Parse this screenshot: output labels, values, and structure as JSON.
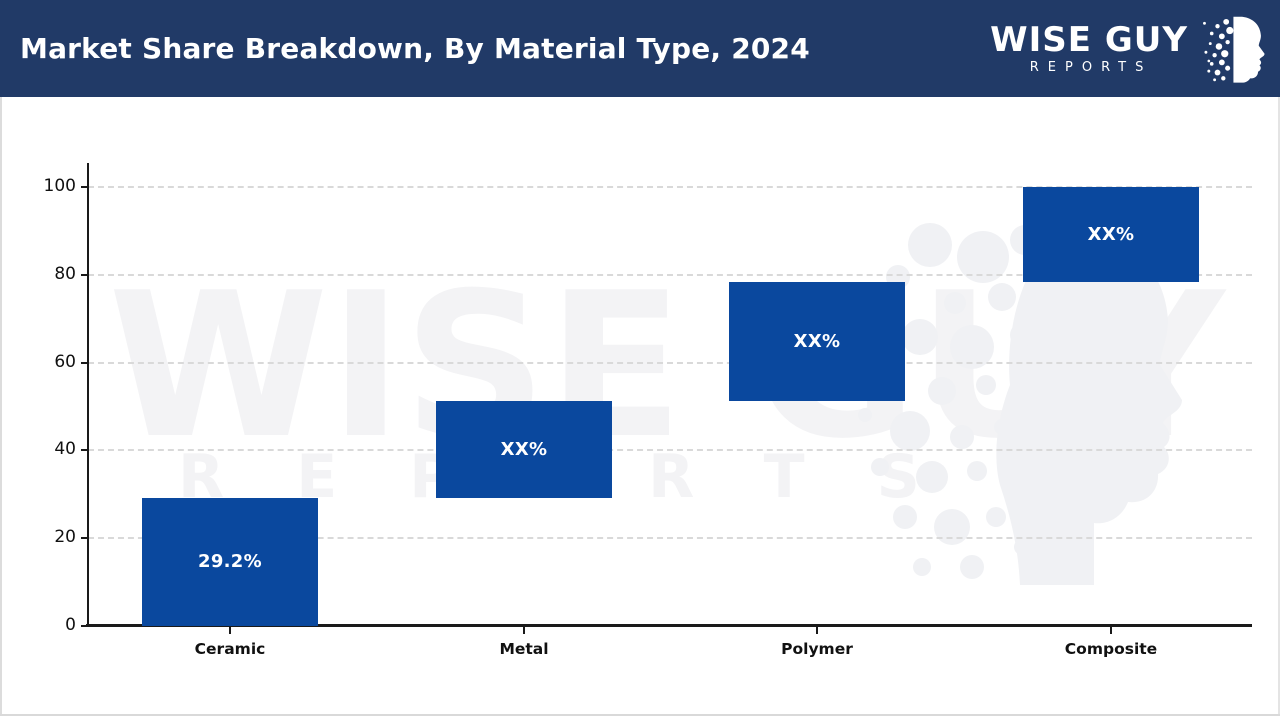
{
  "header": {
    "title": "Market Share Breakdown, By Material Type, 2024",
    "logo": {
      "line1": "WISE GUY",
      "line2": "REPORTS"
    }
  },
  "watermark": {
    "line1": "WISE GUY",
    "line2": "REPORTS"
  },
  "colors": {
    "header_bg": "#213a67",
    "bar": "#0a489e",
    "axis": "#1a1a1a",
    "grid": "#d9d9d9",
    "watermark": "#f3f3f5",
    "title_text": "#ffffff"
  },
  "chart_data": {
    "type": "bar",
    "subtype": "waterfall",
    "title": "Market Share Breakdown, By Material Type, 2024",
    "categories": [
      "Ceramic",
      "Metal",
      "Polymer",
      "Composite"
    ],
    "segments": [
      {
        "category": "Ceramic",
        "start": 0,
        "end": 29.2,
        "label": "29.2%"
      },
      {
        "category": "Metal",
        "start": 29.2,
        "end": 51.2,
        "label": "XX%"
      },
      {
        "category": "Polymer",
        "start": 51.2,
        "end": 78.4,
        "label": "XX%"
      },
      {
        "category": "Composite",
        "start": 78.4,
        "end": 100,
        "label": "XX%"
      }
    ],
    "ylim": [
      0,
      100
    ],
    "yticks": [
      0,
      20,
      40,
      60,
      80,
      100
    ],
    "xlabel": "",
    "ylabel": "",
    "grid": "horizontal-dashed",
    "legend": "none",
    "bar_color": "#0a489e"
  }
}
